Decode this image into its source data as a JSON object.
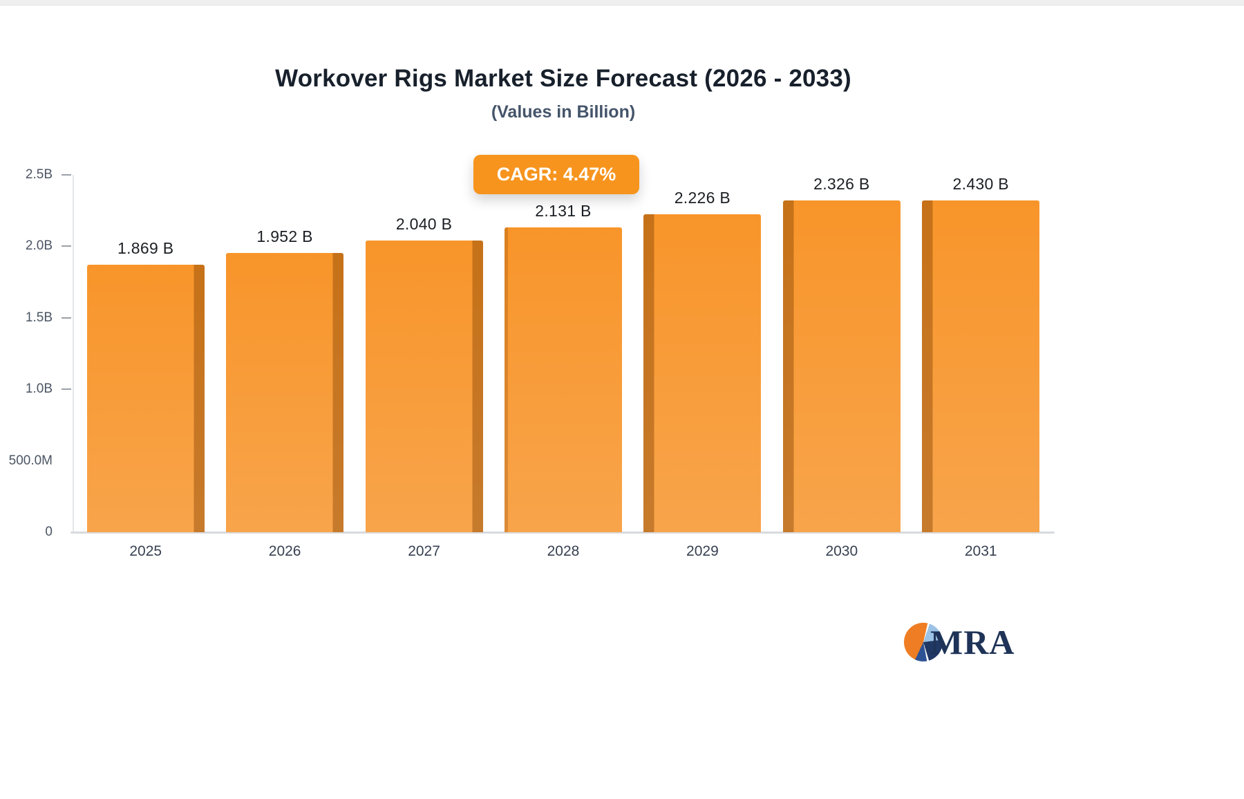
{
  "chart_data": {
    "type": "bar",
    "title": "Workover Rigs Market Size Forecast (2026 - 2033)",
    "subtitle": "(Values in Billion)",
    "cagr_label": "CAGR: 4.47%",
    "categories": [
      "2025",
      "2026",
      "2027",
      "2028",
      "2029",
      "2030",
      "2031"
    ],
    "values": [
      1.869,
      1.952,
      2.04,
      2.131,
      2.226,
      2.326,
      2.43
    ],
    "value_labels": [
      "1.869 B",
      "1.952 B",
      "2.040 B",
      "2.131 B",
      "2.226 B",
      "2.326 B",
      "2.430 B"
    ],
    "xlabel": "",
    "ylabel": "",
    "ylim": [
      0,
      2.5
    ],
    "grid": false,
    "legend": "none",
    "y_ticks": [
      {
        "label": "2.5B",
        "value": 2.5,
        "dash": true
      },
      {
        "label": "2.0B",
        "value": 2.0,
        "dash": true
      },
      {
        "label": "1.5B",
        "value": 1.5,
        "dash": true
      },
      {
        "label": "1.0B",
        "value": 1.0,
        "dash": true
      },
      {
        "label": "500.0M",
        "value": 0.5,
        "dash": false
      },
      {
        "label": "0",
        "value": 0.0,
        "dash": false
      }
    ],
    "colors": {
      "bar": "#F7941E",
      "bar_side_shadow": "#C2761F",
      "badge_background": "#F7941E",
      "badge_text": "#FFFFFF",
      "value_label_text": "#1B1F24",
      "axis_text": "#4B5563"
    }
  },
  "logo": {
    "text": "MRA"
  }
}
